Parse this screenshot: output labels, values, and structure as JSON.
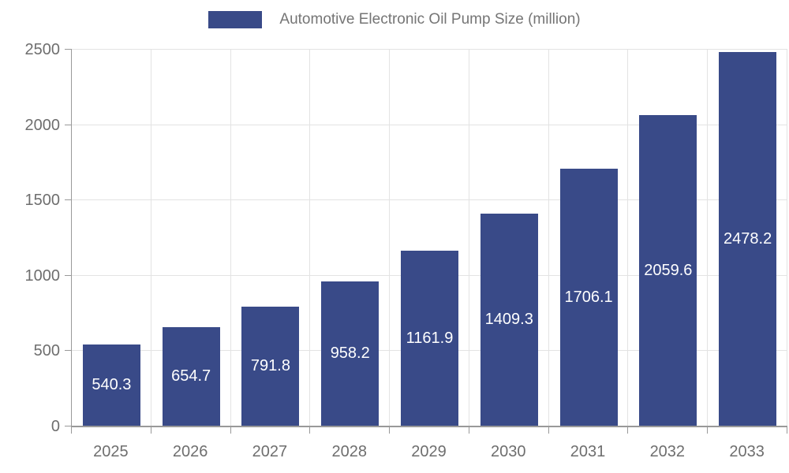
{
  "legend": {
    "label": "Automotive Electronic Oil Pump Size (million)"
  },
  "chart_data": {
    "type": "bar",
    "title": "Automotive Electronic Oil Pump Size (million)",
    "categories": [
      "2025",
      "2026",
      "2027",
      "2028",
      "2029",
      "2030",
      "2031",
      "2032",
      "2033"
    ],
    "values": [
      540.3,
      654.7,
      791.8,
      958.2,
      1161.9,
      1409.3,
      1706.1,
      2059.6,
      2478.2
    ],
    "xlabel": "",
    "ylabel": "",
    "ylim": [
      0,
      2500
    ],
    "yticks": [
      0,
      500,
      1000,
      1500,
      2000,
      2500
    ],
    "grid": true,
    "legend_position": "top-center",
    "value_labels": "inside-center-white",
    "colors": {
      "bar": "#394a88",
      "value_label": "#ffffff",
      "axis_line": "#999999",
      "grid_line": "#e3e3e3",
      "tick_label": "#6e6e6e",
      "legend_text": "#757575"
    }
  }
}
